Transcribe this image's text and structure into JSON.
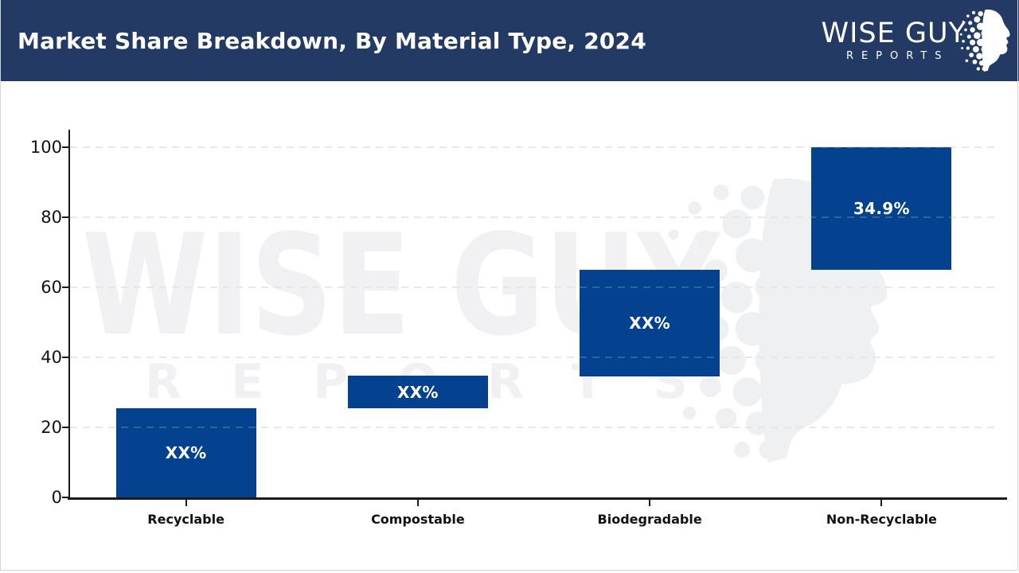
{
  "header": {
    "title": "Market Share Breakdown, By Material Type, 2024",
    "background_color": "#233a64",
    "logo": {
      "line1": "WISE GUY",
      "line2": "REPORTS"
    }
  },
  "watermark": {
    "line1": "WISE GUY",
    "line2": "REPORTS"
  },
  "chart_data": {
    "type": "bar",
    "subtype": "floating-segment-waterfall",
    "title": "Market Share Breakdown, By Material Type, 2024",
    "categories": [
      "Recyclable",
      "Compostable",
      "Biodegradable",
      "Non-Recyclable"
    ],
    "segments": [
      {
        "category": "Recyclable",
        "start": 0,
        "end": 25.4,
        "label": "XX%"
      },
      {
        "category": "Compostable",
        "start": 25.4,
        "end": 34.8,
        "label": "XX%"
      },
      {
        "category": "Biodegradable",
        "start": 34.6,
        "end": 64.9,
        "label": "XX%"
      },
      {
        "category": "Non-Recyclable",
        "start": 65.1,
        "end": 100,
        "label": "34.9%"
      }
    ],
    "yticks": [
      0,
      20,
      40,
      60,
      80,
      100
    ],
    "ylim": [
      0,
      105
    ],
    "xlabel": "",
    "ylabel": "",
    "grid": "dashed-horizontal",
    "legend": "none",
    "bar_color": "#04418f",
    "bar_label_color": "#ffffff",
    "axis_color": "#1a1a1a",
    "gridline_color": "#e2e2e2"
  }
}
